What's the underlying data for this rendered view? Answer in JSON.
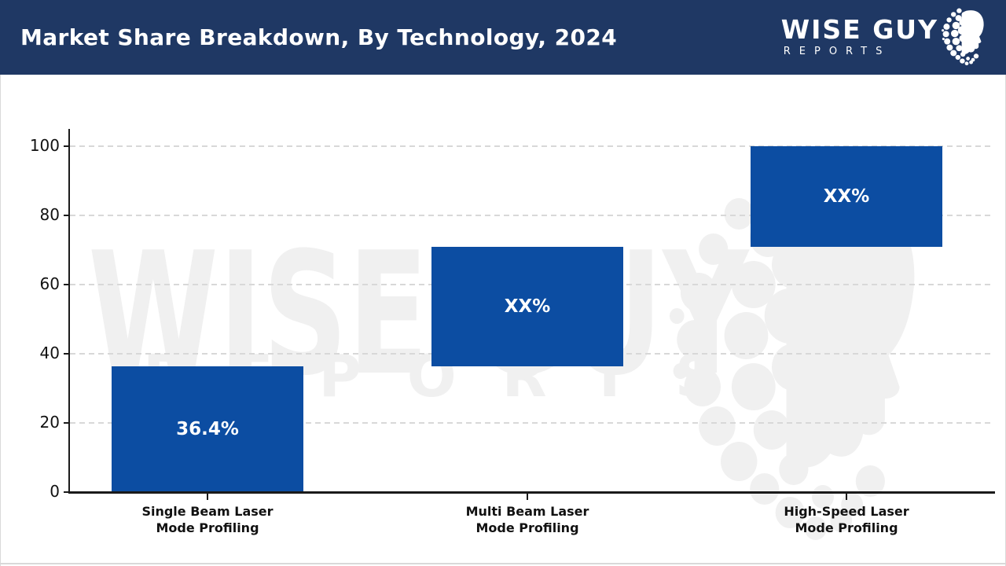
{
  "header": {
    "title": "Market Share Breakdown, By Technology, 2024",
    "bg_color": "#1f3864",
    "logo": {
      "line1": "WISE GUY",
      "line2": "REPORTS"
    }
  },
  "watermark": {
    "line1": "WISE GUY",
    "line2": "REPORTS"
  },
  "icons": {
    "logo_face": "dotted-face-profile-icon"
  },
  "chart_data": {
    "type": "bar",
    "subtype": "waterfall",
    "title": "Market Share Breakdown, By Technology, 2024",
    "unit": "%",
    "categories": [
      [
        "Single Beam Laser",
        "Mode Profiling"
      ],
      [
        "Multi Beam Laser",
        "Mode Profiling"
      ],
      [
        "High-Speed Laser",
        "Mode Profiling"
      ]
    ],
    "segments": [
      {
        "start": 0,
        "end": 36.4,
        "label": "36.4%"
      },
      {
        "start": 36.4,
        "end": 71,
        "label": "XX%"
      },
      {
        "start": 71,
        "end": 100,
        "label": "XX%"
      }
    ],
    "yticks": [
      0,
      20,
      40,
      60,
      80,
      100
    ],
    "ylim": [
      0,
      105
    ],
    "bar_color": "#0c4da2",
    "bar_label_color": "#ffffff",
    "grid": "dashed-horizontal",
    "legend": "none"
  }
}
